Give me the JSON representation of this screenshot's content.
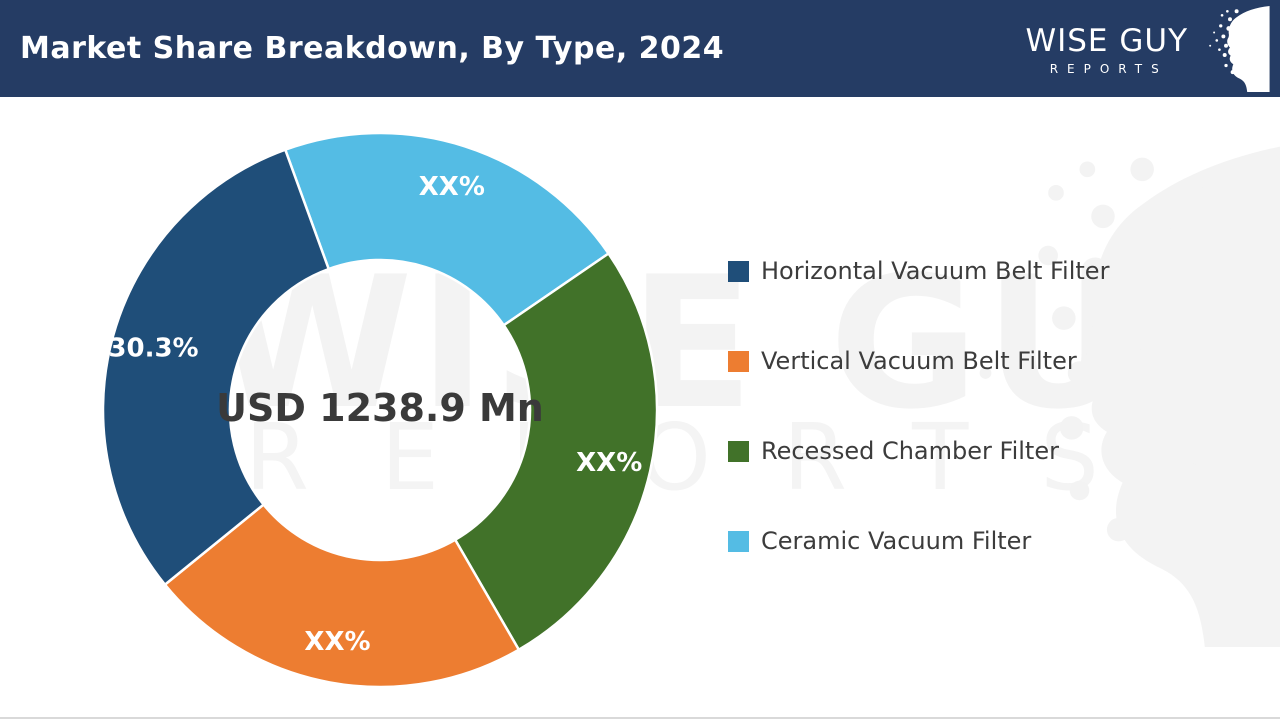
{
  "header": {
    "title": "Market Share Breakdown, By Type, 2024",
    "logo": {
      "line1": "WISE GUY",
      "line2": "REPORTS"
    }
  },
  "colors": {
    "header_bg": "#253C64",
    "horizontal_vacuum_belt_filter": "#1F4E79",
    "vertical_vacuum_belt_filter": "#ED7D31",
    "recessed_chamber_filter": "#417229",
    "ceramic_vacuum_filter": "#54BCE4",
    "watermark": "#f3f3f3"
  },
  "chart_data": {
    "type": "pie",
    "subtype": "donut",
    "title": "Market Share Breakdown, By Type, 2024",
    "center_label": "USD 1238.9 Mn",
    "start_angle_deg": -20,
    "direction": "clockwise",
    "legend_position": "right",
    "segments": [
      {
        "name": "Ceramic Vacuum Filter",
        "value_pct": 21.0,
        "label": "XX%",
        "color": "#54BCE4"
      },
      {
        "name": "Recessed Chamber Filter",
        "value_pct": 26.2,
        "label": "XX%",
        "color": "#417229"
      },
      {
        "name": "Vertical Vacuum Belt Filter",
        "value_pct": 22.5,
        "label": "XX%",
        "color": "#ED7D31"
      },
      {
        "name": "Horizontal Vacuum Belt Filter",
        "value_pct": 30.3,
        "label": "30.3%",
        "color": "#1F4E79"
      }
    ]
  },
  "center_label": "USD 1238.9 Mn",
  "legend": {
    "items": [
      {
        "label": "Horizontal Vacuum Belt Filter",
        "color": "#1F4E79"
      },
      {
        "label": "Vertical Vacuum Belt Filter",
        "color": "#ED7D31"
      },
      {
        "label": "Recessed Chamber Filter",
        "color": "#417229"
      },
      {
        "label": "Ceramic Vacuum Filter",
        "color": "#54BCE4"
      }
    ]
  },
  "watermark": {
    "line1": "WISE GUY",
    "line2": "REPORTS"
  }
}
